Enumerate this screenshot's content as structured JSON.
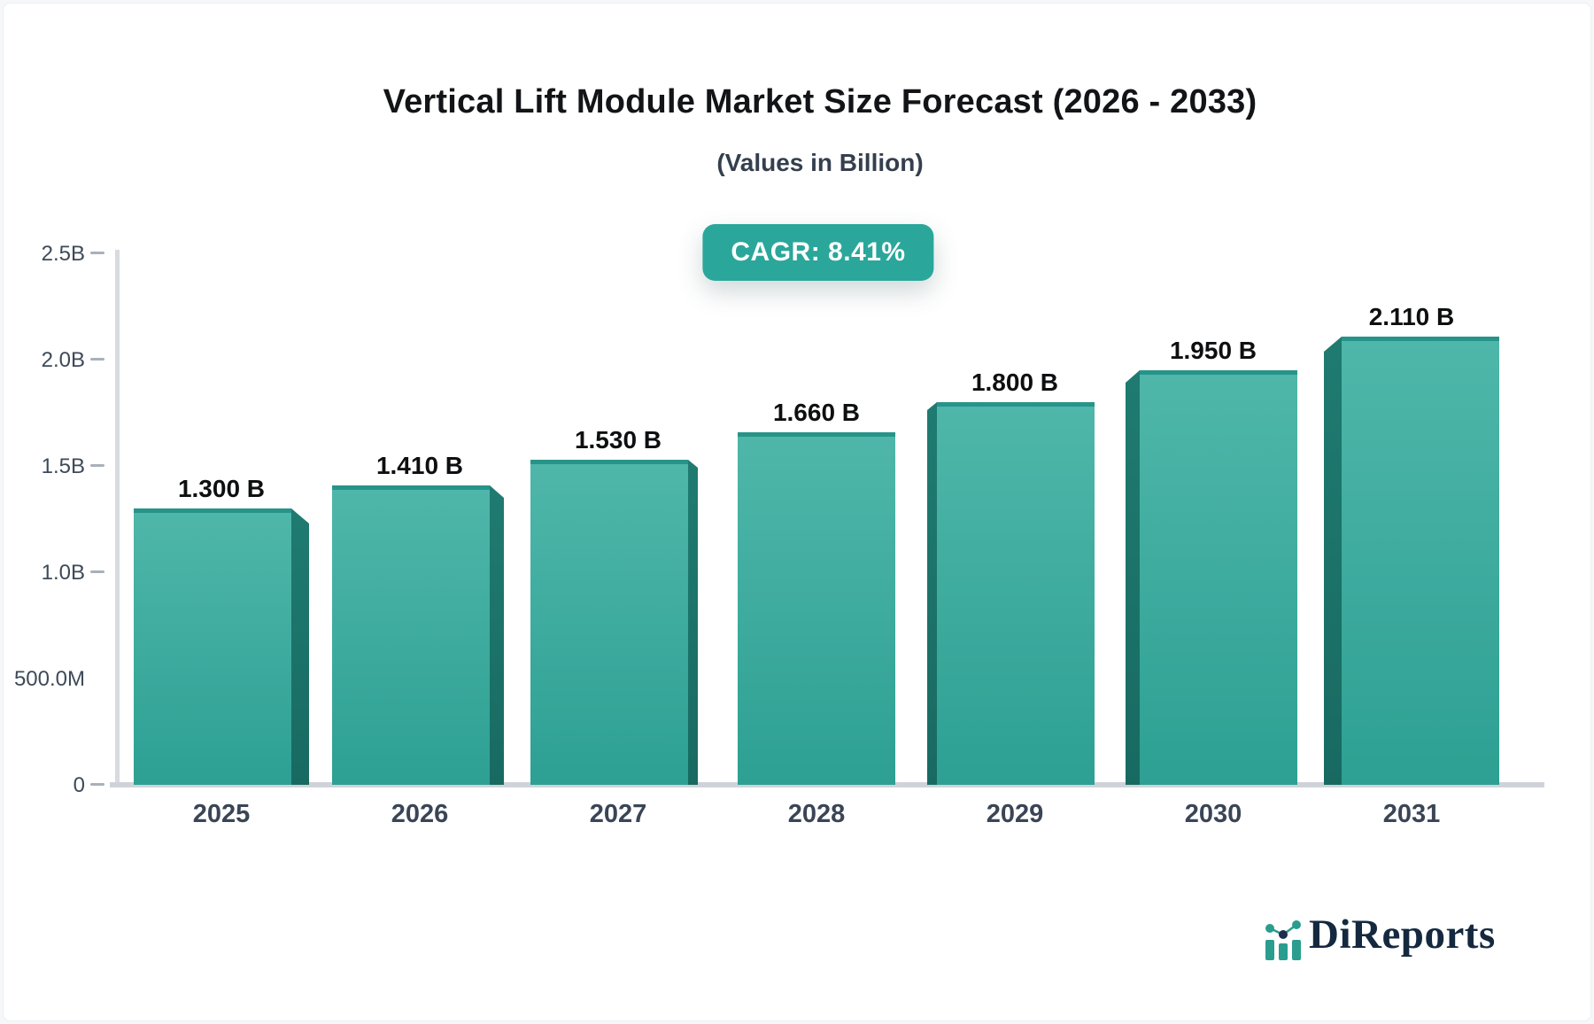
{
  "header": {
    "title": "Vertical Lift Module Market Size Forecast (2026 - 2033)",
    "subtitle": "(Values in Billion)"
  },
  "badge": {
    "label": "CAGR: 8.41%",
    "background": "#2aa79a",
    "text_color": "#ffffff"
  },
  "chart_data": {
    "type": "bar",
    "title": "Vertical Lift Module Market Size Forecast (2026 - 2033)",
    "subtitle": "(Values in Billion)",
    "categories": [
      "2025",
      "2026",
      "2027",
      "2028",
      "2029",
      "2030",
      "2031"
    ],
    "values": [
      1.3,
      1.41,
      1.53,
      1.66,
      1.8,
      1.95,
      2.11
    ],
    "value_labels": [
      "1.300 B",
      "1.410 B",
      "1.530 B",
      "1.660 B",
      "1.800 B",
      "1.950 B",
      "2.110 B"
    ],
    "unit": "B",
    "ylim": [
      0,
      2.5
    ],
    "y_ticks": [
      {
        "label": "0",
        "value": 0,
        "dash": true
      },
      {
        "label": "500.0M",
        "value": 0.5,
        "dash": false
      },
      {
        "label": "1.0B",
        "value": 1.0,
        "dash": true
      },
      {
        "label": "1.5B",
        "value": 1.5,
        "dash": true
      },
      {
        "label": "2.0B",
        "value": 2.0,
        "dash": true
      },
      {
        "label": "2.5B",
        "value": 2.5,
        "dash": true
      }
    ],
    "grid": false,
    "legend": false,
    "colors": {
      "bar_face_top": "#4fb7aa",
      "bar_face_bottom": "#2da093",
      "bar_top_edge": "#279489",
      "bar_side_top": "#1f7b71",
      "bar_side_bottom": "#186a61",
      "axis_line": "#d7dade",
      "baseline": "#cfd3d9",
      "tick_dash": "#aab0b9",
      "y_label_color": "#3e4a59",
      "x_label_color": "#3a4556",
      "value_label_color": "#0e0f10"
    }
  },
  "logo": {
    "text": "DiReports",
    "color": "#14293f",
    "icon": "bar-chart-trend-icon",
    "icon_teal": "#2a9d8f",
    "icon_navy": "#1b2f4e"
  }
}
